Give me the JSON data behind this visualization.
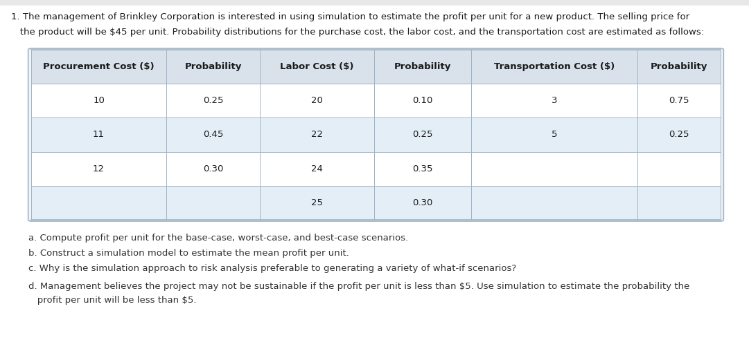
{
  "title_line1": "1. The management of Brinkley Corporation is interested in using simulation to estimate the profit per unit for a new product. The selling price for",
  "title_line2": "   the product will be $45 per unit. Probability distributions for the purchase cost, the labor cost, and the transportation cost are estimated as follows:",
  "col_headers": [
    "Procurement Cost ($)",
    "Probability",
    "Labor Cost ($)",
    "Probability",
    "Transportation Cost ($)",
    "Probability"
  ],
  "table_data": [
    [
      "10",
      "0.25",
      "20",
      "0.10",
      "3",
      "0.75"
    ],
    [
      "11",
      "0.45",
      "22",
      "0.25",
      "5",
      "0.25"
    ],
    [
      "12",
      "0.30",
      "24",
      "0.35",
      "",
      ""
    ],
    [
      "",
      "",
      "25",
      "0.30",
      "",
      ""
    ]
  ],
  "footer_lines": [
    "a. Compute profit per unit for the base-case, worst-case, and best-case scenarios.",
    "b. Construct a simulation model to estimate the mean profit per unit.",
    "c. Why is the simulation approach to risk analysis preferable to generating a variety of what-if scenarios?",
    "d. Management believes the project may not be sustainable if the profit per unit is less than $5. Use simulation to estimate the probability the",
    "   profit per unit will be less than $5."
  ],
  "bg_color": "#ffffff",
  "page_top_bar": "#e8e8e8",
  "table_outer_bg": "#f2f5f8",
  "header_bg": "#d9e2eb",
  "row_bg_even": "#e4eef7",
  "row_bg_odd": "#ffffff",
  "border_color": "#a0b4c4",
  "header_font_size": 9.5,
  "cell_font_size": 9.5,
  "text_font_size": 9.5,
  "title_font_size": 9.5
}
